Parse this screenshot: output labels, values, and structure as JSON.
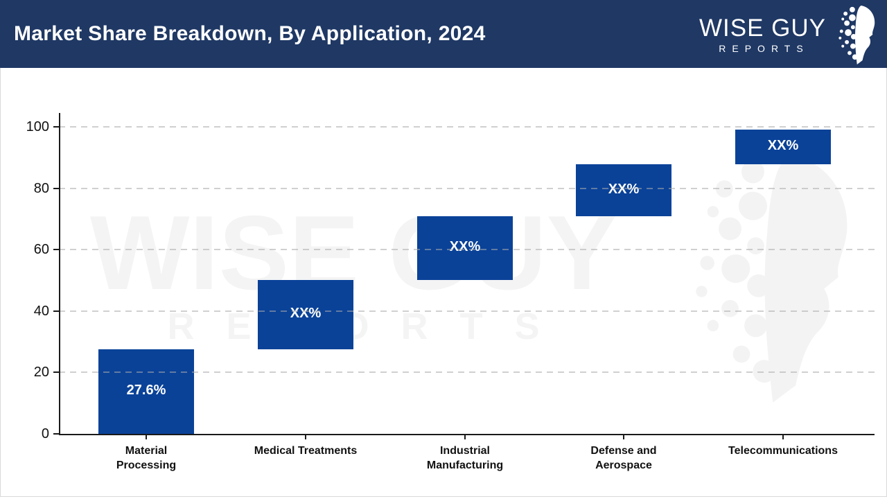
{
  "header": {
    "title": "Market Share Breakdown, By Application, 2024",
    "bg_color": "#1f3864",
    "logo": {
      "line1": "WISE GUY",
      "line2": "REPORTS"
    }
  },
  "watermark": {
    "line1": "WISE GUY",
    "line2": "REPORTS"
  },
  "chart_data": {
    "type": "bar",
    "subtype": "waterfall",
    "title": "Market Share Breakdown, By Application, 2024",
    "xlabel": "",
    "ylabel": "",
    "categories": [
      {
        "name": "Material Processing",
        "lines": [
          "Material",
          "Processing"
        ]
      },
      {
        "name": "Medical Treatments",
        "lines": [
          "Medical Treatments"
        ]
      },
      {
        "name": "Industrial Manufacturing",
        "lines": [
          "Industrial",
          "Manufacturing"
        ]
      },
      {
        "name": "Defense and Aerospace",
        "lines": [
          "Defense and",
          "Aerospace"
        ]
      },
      {
        "name": "Telecommunications",
        "lines": [
          "Telecommunications"
        ]
      }
    ],
    "segments": [
      {
        "label": "27.6%",
        "start": 0,
        "end": 27.6
      },
      {
        "label": "XX%",
        "start": 27.6,
        "end": 50.2
      },
      {
        "label": "XX%",
        "start": 50.2,
        "end": 71.0
      },
      {
        "label": "XX%",
        "start": 71.0,
        "end": 87.8
      },
      {
        "label": "XX%",
        "start": 87.8,
        "end": 99.2
      }
    ],
    "yticks": [
      0,
      20,
      40,
      60,
      80,
      100
    ],
    "ylim": [
      0,
      104.6
    ],
    "bar_color": "#0a4298",
    "grid": "dashed-horizontal",
    "legend": null
  }
}
